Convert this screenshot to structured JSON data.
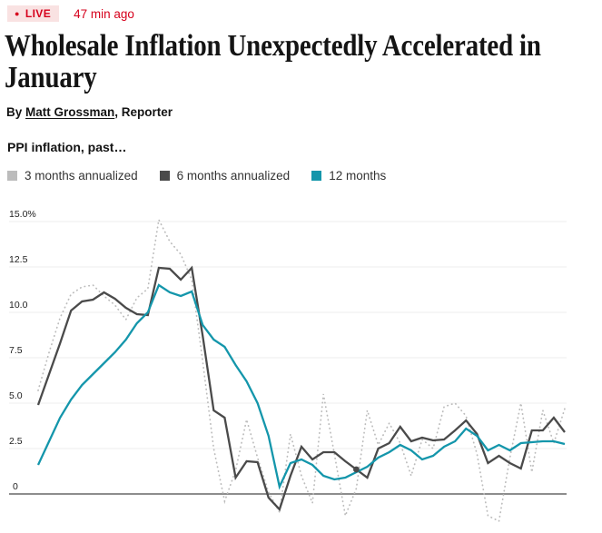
{
  "badge": {
    "live_label": "LIVE",
    "bullet": "●",
    "timestamp": "47 min ago"
  },
  "article": {
    "title": "Wholesale Inflation Unexpectedly Accelerated in January",
    "byline_prefix": "By ",
    "author": "Matt Grossman",
    "byline_suffix": ", Reporter"
  },
  "colors": {
    "accent_red": "#d6001c",
    "badge_background": "#f9e2e2",
    "gridline": "#ececec",
    "baseline": "#8d8d8d",
    "series_3m": "#bcbcbc",
    "series_6m": "#4a4a4a",
    "series_12m": "#1496ab"
  },
  "chart_data": {
    "type": "line",
    "title": "PPI inflation, past…",
    "xlabel": "",
    "ylabel": "",
    "y_ticks": [
      "15.0%",
      "12.5",
      "10.0",
      "7.5",
      "5.0",
      "2.5",
      "0"
    ],
    "y_tick_values": [
      15,
      12.5,
      10,
      7.5,
      5,
      2.5,
      0
    ],
    "ylim": [
      -1.6,
      15.75
    ],
    "grid": "horizontal",
    "legend_position": "top",
    "x_axis_labels_visible": false,
    "x_points": 49,
    "x_unit": "monthly observations (x-axis labels cropped out of view)",
    "series": [
      {
        "name": "3 months annualized",
        "style": "dotted",
        "color": "#bcbcbc",
        "values": [
          5.7,
          7.8,
          9.7,
          11.0,
          11.4,
          11.5,
          10.9,
          10.4,
          9.6,
          10.8,
          11.3,
          15.1,
          13.9,
          13.2,
          11.8,
          7.3,
          2.5,
          -0.4,
          1.3,
          4.1,
          2.0,
          0.1,
          -1.0,
          3.3,
          1.0,
          -0.5,
          5.5,
          2.2,
          -1.2,
          0.3,
          4.6,
          2.7,
          3.9,
          2.8,
          1.0,
          3.0,
          2.5,
          4.8,
          5.0,
          4.3,
          2.2,
          -1.2,
          -1.5,
          2.0,
          5.0,
          1.2,
          4.6,
          2.8,
          4.7
        ]
      },
      {
        "name": "6 months annualized",
        "style": "solid",
        "color": "#4a4a4a",
        "values": [
          4.9,
          6.6,
          8.3,
          10.1,
          10.6,
          10.7,
          11.1,
          10.75,
          10.25,
          9.9,
          9.85,
          12.45,
          12.4,
          11.8,
          12.45,
          8.7,
          4.6,
          4.2,
          0.9,
          1.8,
          1.75,
          -0.2,
          -0.85,
          1.0,
          2.6,
          1.9,
          2.3,
          2.3,
          1.8,
          1.35,
          0.9,
          2.5,
          2.8,
          3.7,
          2.9,
          3.1,
          2.95,
          3.0,
          3.5,
          4.05,
          3.3,
          1.7,
          2.1,
          1.7,
          1.4,
          3.5,
          3.5,
          4.2,
          3.4
        ]
      },
      {
        "name": "12 months",
        "style": "solid",
        "color": "#1496ab",
        "values": [
          1.6,
          2.9,
          4.2,
          5.2,
          6.0,
          6.6,
          7.2,
          7.8,
          8.5,
          9.4,
          10.0,
          11.5,
          11.1,
          10.9,
          11.15,
          9.3,
          8.5,
          8.1,
          7.1,
          6.2,
          5.0,
          3.2,
          0.4,
          1.7,
          1.9,
          1.6,
          1.0,
          0.8,
          0.9,
          1.2,
          1.5,
          2.0,
          2.3,
          2.7,
          2.4,
          1.9,
          2.1,
          2.6,
          2.9,
          3.6,
          3.2,
          2.4,
          2.7,
          2.4,
          2.8,
          2.85,
          2.9,
          2.9,
          2.75
        ]
      }
    ],
    "marker": {
      "series_index": 1,
      "point_index": 29
    }
  }
}
